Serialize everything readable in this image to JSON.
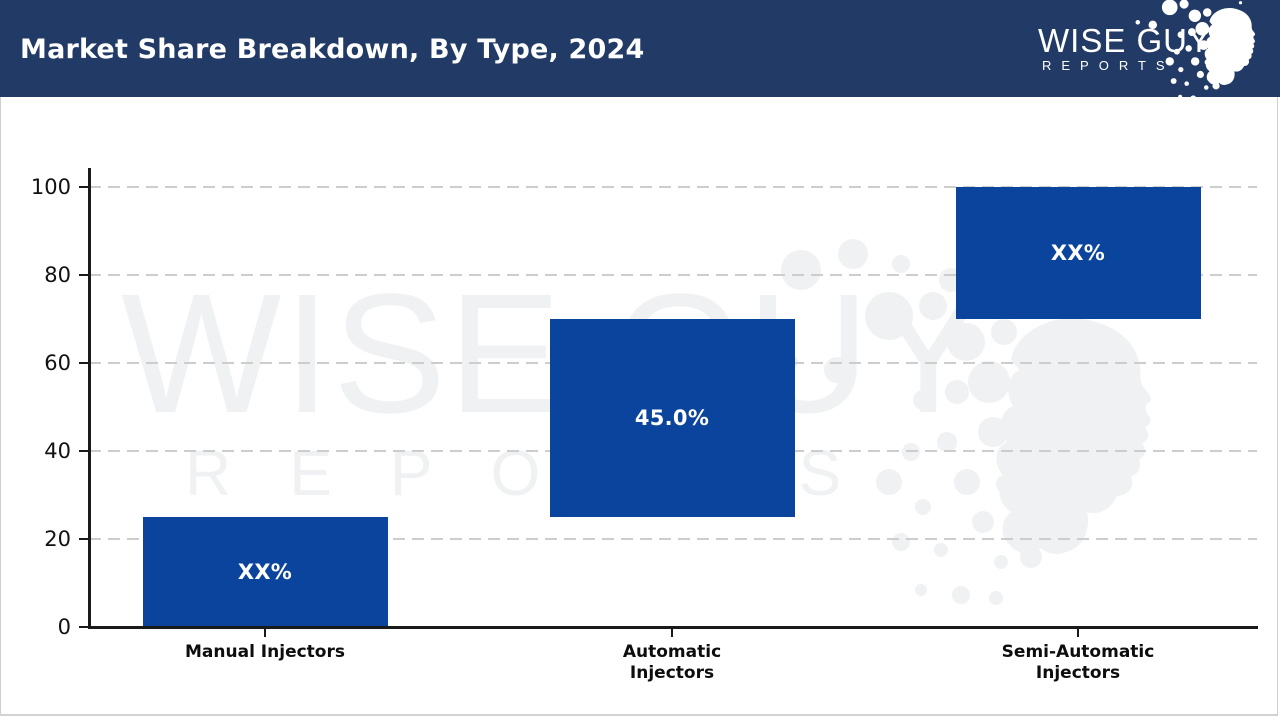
{
  "header": {
    "title": "Market Share Breakdown, By Type, 2024"
  },
  "logo": {
    "name": "WISE GUY",
    "tagline": "REPORTS"
  },
  "watermark": {
    "line1": "WISE GUY",
    "line2": "REPORTS"
  },
  "colors": {
    "header_bg": "#223a66",
    "bar": "#0a449c",
    "axis": "#1a1a1a",
    "grid": "#cdcdcd",
    "watermark": "#f0f1f3",
    "value_label": "#ffffff"
  },
  "chart_data": {
    "type": "bar",
    "subtype": "floating-percentage-bars",
    "title": "Market Share Breakdown, By Type, 2024",
    "categories": [
      "Manual Injectors",
      "Automatic Injectors",
      "Semi-Automatic Injectors"
    ],
    "bars": [
      {
        "category": "Manual Injectors",
        "label": "XX%",
        "start": 0,
        "end": 25
      },
      {
        "category": "Automatic Injectors",
        "label": "45.0%",
        "start": 25,
        "end": 70
      },
      {
        "category": "Semi-Automatic Injectors",
        "label": "XX%",
        "start": 70,
        "end": 100
      }
    ],
    "yticks": [
      0,
      20,
      40,
      60,
      80,
      100
    ],
    "ylim": [
      0,
      105
    ],
    "xlabel": "",
    "ylabel": "",
    "grid": true,
    "grid_style": "dashed",
    "legend": false,
    "bar_color": "#0a449c"
  }
}
